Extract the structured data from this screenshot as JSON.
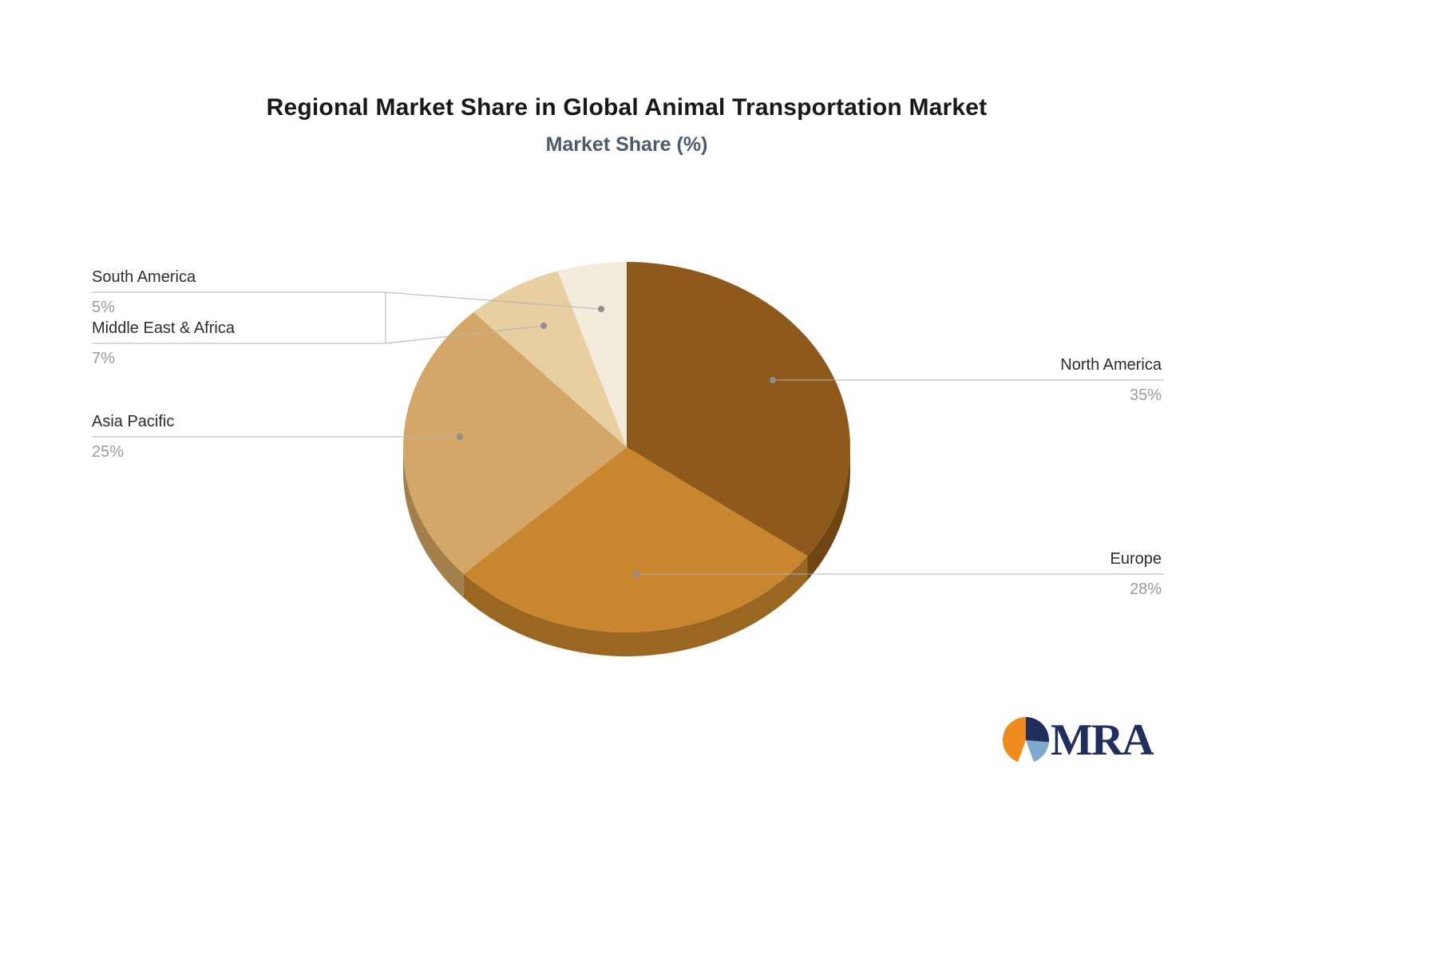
{
  "chart_data": {
    "type": "pie",
    "title": "Regional Market Share in Global Animal Transportation Market",
    "subtitle": "Market Share (%)",
    "unit": "%",
    "effect": "3d",
    "direction": "clockwise",
    "start_angle_deg": 0,
    "label_style": "external-leader-lines",
    "legend": "none",
    "slices": [
      {
        "label": "North America",
        "value": 35,
        "display": "35%",
        "color": "#8e5a1b",
        "side_color": "#6f4514"
      },
      {
        "label": "Europe",
        "value": 28,
        "display": "28%",
        "color": "#c8862f",
        "side_color": "#9a6722"
      },
      {
        "label": "Asia Pacific",
        "value": 25,
        "display": "25%",
        "color": "#d4a769",
        "side_color": "#a37f4c"
      },
      {
        "label": "Middle East & Africa",
        "value": 7,
        "display": "7%",
        "color": "#e7cfa2",
        "side_color": "#b29c77"
      },
      {
        "label": "South America",
        "value": 5,
        "display": "5%",
        "color": "#f3ecdd",
        "side_color": "#bfb6a5"
      }
    ]
  },
  "branding": {
    "logo_text": "MRA",
    "logo_colors": {
      "orange": "#ED8B1F",
      "navy": "#1F2E5C",
      "light_blue": "#7FA8C9"
    }
  },
  "style": {
    "title_color": "#181818",
    "subtitle_color": "#4a5b6b",
    "label_color": "#2d2d2d",
    "value_color": "#9b9b9b",
    "leader_color": "#b3b3b3",
    "leader_dot_color": "#8f8f8f",
    "background": "#ffffff"
  }
}
